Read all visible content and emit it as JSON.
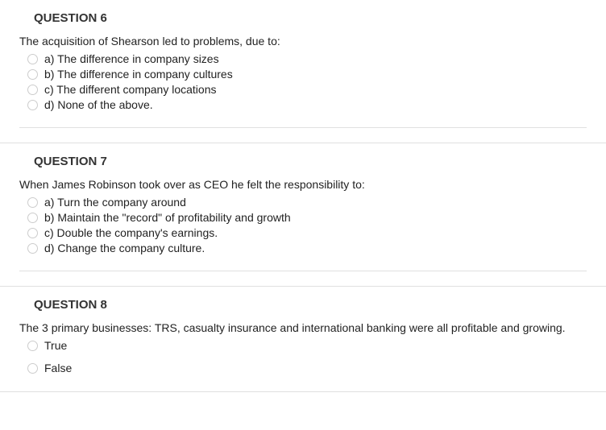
{
  "questions": [
    {
      "title": "QUESTION 6",
      "prompt": "The acquisition of Shearson led to problems, due to:",
      "options": [
        "a) The difference in company sizes",
        "b) The difference in company cultures",
        "c) The different company locations",
        "d) None of the above."
      ]
    },
    {
      "title": "QUESTION 7",
      "prompt": "When James Robinson took over as CEO he felt the responsibility to:",
      "options": [
        "a) Turn the company around",
        "b) Maintain the \"record\" of profitability and growth",
        "c) Double the company's earnings.",
        "d) Change the company culture."
      ]
    },
    {
      "title": "QUESTION 8",
      "prompt": "The 3 primary businesses: TRS, casualty insurance and international banking were all profitable and growing.",
      "options": [
        "True",
        "False"
      ]
    }
  ],
  "colors": {
    "text": "#222222",
    "title": "#333333",
    "radio_border": "#cccccc",
    "divider": "#e0e0e0",
    "background": "#ffffff"
  }
}
